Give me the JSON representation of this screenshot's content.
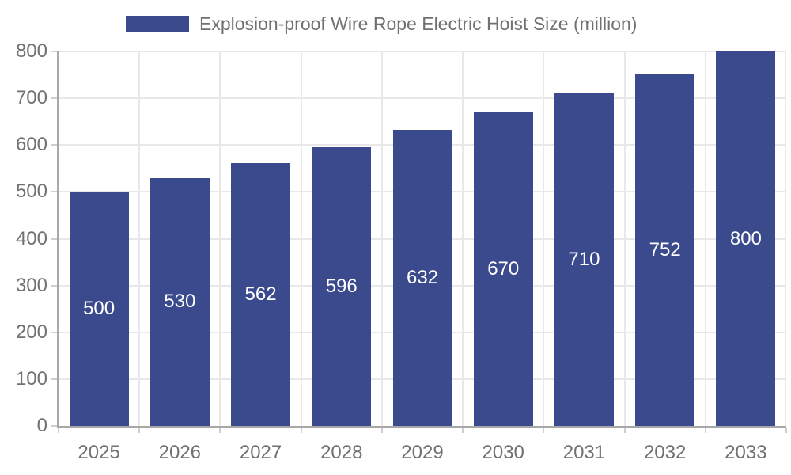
{
  "chart_data": {
    "type": "bar",
    "title": "Explosion-proof Wire Rope Electric Hoist Size (million)",
    "series_name": "Explosion-proof Wire Rope Electric Hoist Size (million)",
    "categories": [
      "2025",
      "2026",
      "2027",
      "2028",
      "2029",
      "2030",
      "2031",
      "2032",
      "2033"
    ],
    "values": [
      500,
      530,
      562,
      596,
      632,
      670,
      710,
      752,
      800
    ],
    "bar_labels_visible": true,
    "xlabel": "",
    "ylabel": "",
    "ylim": [
      0,
      800
    ],
    "yticks": [
      0,
      100,
      200,
      300,
      400,
      500,
      600,
      700,
      800
    ],
    "grid": true,
    "legend_position": "top"
  },
  "colors": {
    "bar": "#3A4A8C",
    "grid": "#E8E8E8",
    "axis": "#A8A8A8",
    "tick": "#CFCFCF",
    "text": "#717171",
    "bar_label_text": "#FFFFFF",
    "background": "#FFFFFF"
  }
}
